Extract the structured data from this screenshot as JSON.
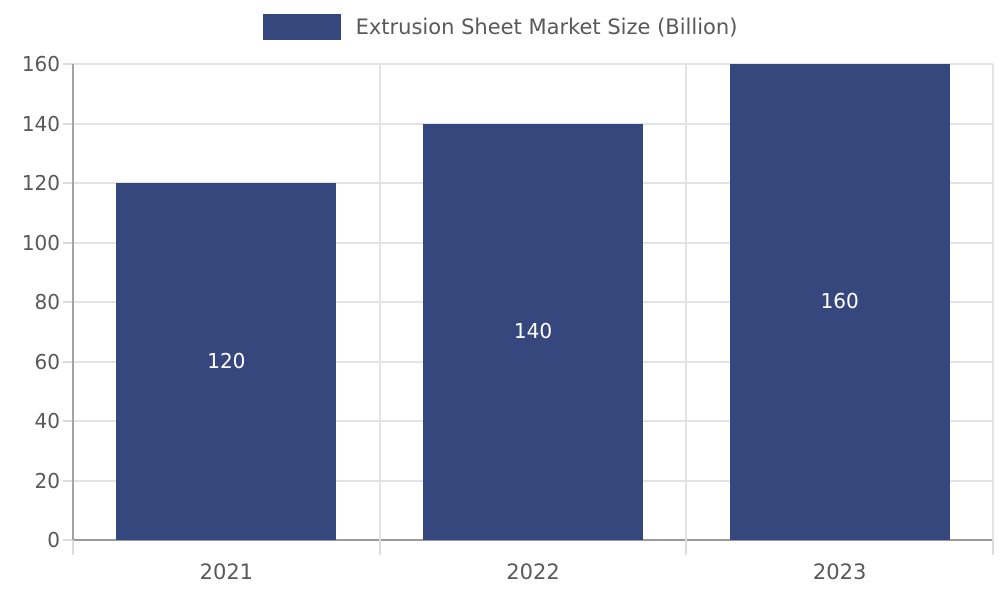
{
  "chart_data": {
    "type": "bar",
    "title": "Extrusion Sheet Market Size (Billion)",
    "categories": [
      "2021",
      "2022",
      "2023"
    ],
    "values": [
      120,
      140,
      160
    ],
    "xlabel": "",
    "ylabel": "",
    "ylim": [
      0,
      160
    ],
    "ytick_step": 20,
    "y_tick_labels": [
      "0",
      "20",
      "40",
      "60",
      "80",
      "100",
      "120",
      "140",
      "160"
    ],
    "grid": true,
    "legend_position": "top",
    "bar_color": "#36477d",
    "value_label_color": "#ffffff",
    "tick_label_color": "#595959",
    "gridline_color": "#e3e3e3",
    "axis_color": "#9a9a9a"
  },
  "legend": {
    "label": "Extrusion Sheet Market Size (Billion)"
  }
}
